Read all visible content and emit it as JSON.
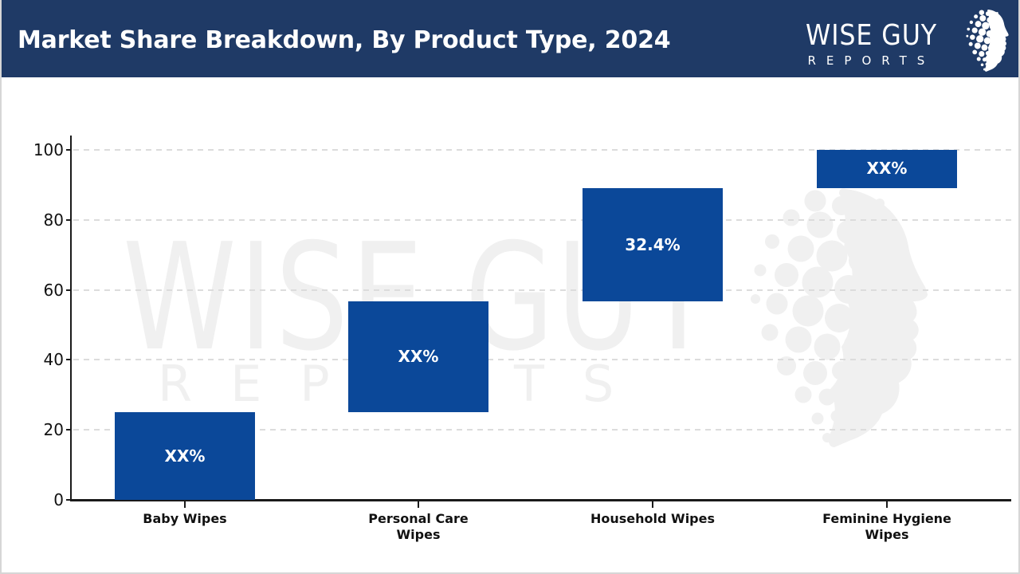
{
  "page": {
    "bg_color": "#ffffff",
    "border_color": "#d6d6d6"
  },
  "header": {
    "bg_color": "#1f3a66",
    "title": "Market Share Breakdown, By Product Type, 2024",
    "logo": {
      "line1": "WISE GUY",
      "line2": "REPORTS"
    }
  },
  "watermark": {
    "line1": "WISE GUY",
    "line2": "REPORTS"
  },
  "chart_data": {
    "type": "bar",
    "subtype": "waterfall",
    "title": "Market Share Breakdown, By Product Type, 2024",
    "categories": [
      "Baby Wipes",
      "Personal Care Wipes",
      "Household Wipes",
      "Feminine Hygiene Wipes"
    ],
    "category_label_lines": [
      [
        "Baby Wipes"
      ],
      [
        "Personal Care",
        "Wipes"
      ],
      [
        "Household Wipes"
      ],
      [
        "Feminine Hygiene",
        "Wipes"
      ]
    ],
    "series": [
      {
        "name": "Market share (%)",
        "segments": [
          {
            "category": "Baby Wipes",
            "start": 0,
            "end": 25.1,
            "value_label": "XX%"
          },
          {
            "category": "Personal Care Wipes",
            "start": 25.1,
            "end": 56.7,
            "value_label": "XX%"
          },
          {
            "category": "Household Wipes",
            "start": 56.7,
            "end": 89.1,
            "value_label": "32.4%"
          },
          {
            "category": "Feminine Hygiene Wipes",
            "start": 89.1,
            "end": 100,
            "value_label": "XX%"
          }
        ]
      }
    ],
    "xlabel": "",
    "ylabel": "",
    "ylim": [
      0,
      100
    ],
    "yticks": [
      0,
      20,
      40,
      60,
      80,
      100
    ],
    "grid": "horizontal-dashed",
    "legend": "none",
    "bar_color": "#0b4899",
    "bar_label_color": "#ffffff",
    "axis_color": "#1a1a1a",
    "grid_color": "#dcdcdc",
    "tick_label_color": "#111111"
  }
}
